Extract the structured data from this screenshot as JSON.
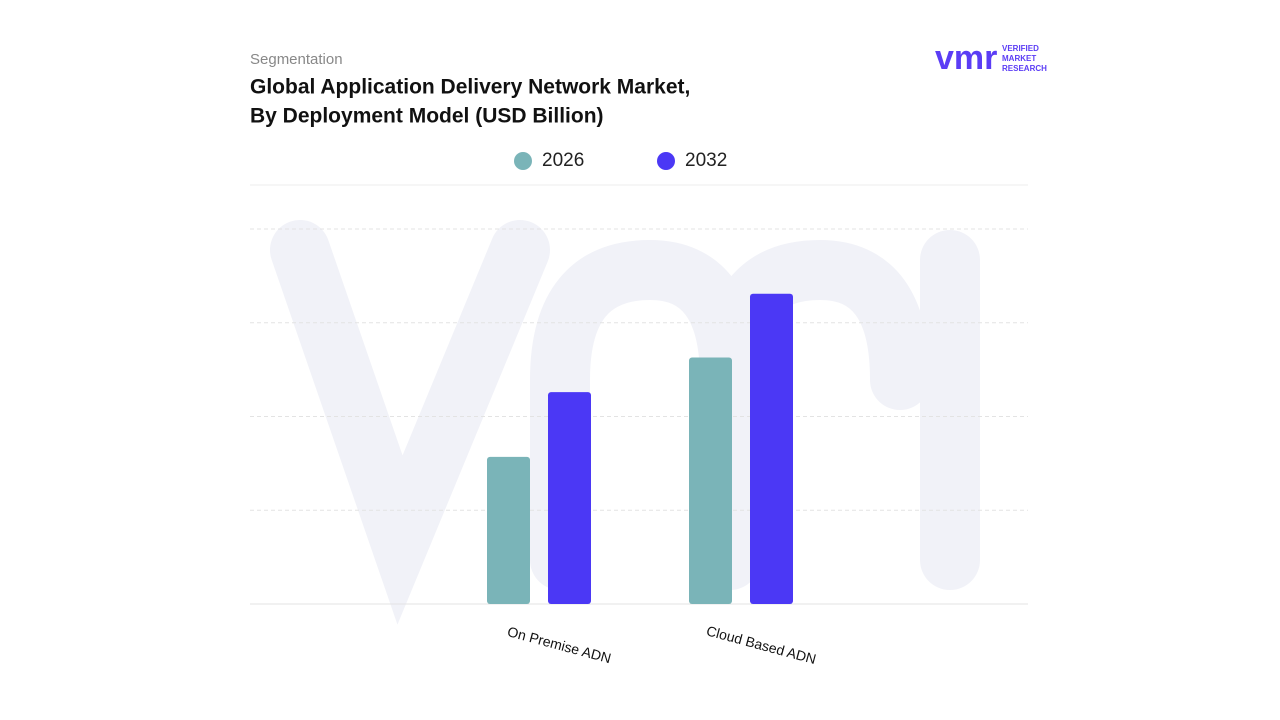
{
  "logo": {
    "mark": "vmr",
    "lines": [
      "VERIFIED",
      "MARKET",
      "RESEARCH"
    ]
  },
  "chart_data": {
    "type": "bar",
    "subtitle": "Segmentation",
    "title": [
      "Global Application Delivery Network Market,",
      "By Deployment Model (USD Billion)"
    ],
    "categories": [
      "On Premise ADN",
      "Cloud Based ADN"
    ],
    "series": [
      {
        "name": "2026",
        "color": "#7ab4b8",
        "values": [
          1.57,
          2.63
        ]
      },
      {
        "name": "2032",
        "color": "#4b38f5",
        "values": [
          2.26,
          3.31
        ]
      }
    ],
    "ylim": [
      0,
      4.47
    ],
    "gridlines": [
      1,
      2,
      3,
      4
    ],
    "grid": true
  }
}
